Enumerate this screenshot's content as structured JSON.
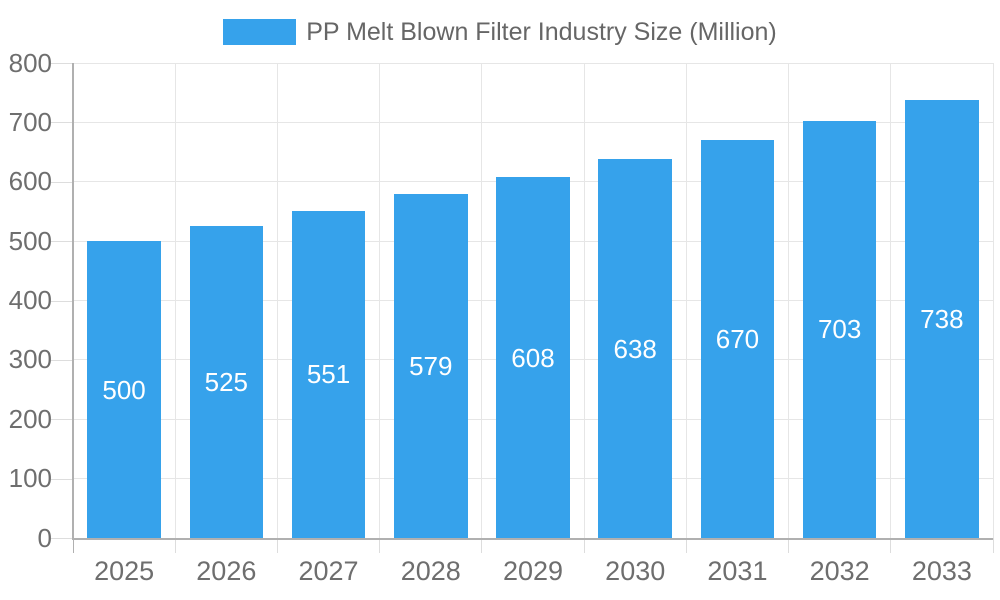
{
  "chart_data": {
    "type": "bar",
    "title": "PP Melt Blown Filter Industry Size (Million)",
    "legend_label": "PP Melt Blown Filter Industry Size (Million)",
    "legend_position": "top",
    "categories": [
      "2025",
      "2026",
      "2027",
      "2028",
      "2029",
      "2030",
      "2031",
      "2032",
      "2033"
    ],
    "values": [
      500,
      525,
      551,
      579,
      608,
      638,
      670,
      703,
      738
    ],
    "xlabel": "",
    "ylabel": "",
    "ylim": [
      0,
      800
    ],
    "yticks": [
      0,
      100,
      200,
      300,
      400,
      500,
      600,
      700,
      800
    ],
    "grid": true,
    "value_label_position": "inside-middle"
  },
  "colors": {
    "bar": "#36A2EB",
    "grid_line": "#E6E6E6",
    "tick_mark": "#DDDDDD",
    "axis_line": "#B0B0B0",
    "axis_label_text": "#6E6E6E",
    "legend_text": "#666666",
    "value_label_text": "#FFFFFF",
    "background": "#FFFFFF"
  }
}
